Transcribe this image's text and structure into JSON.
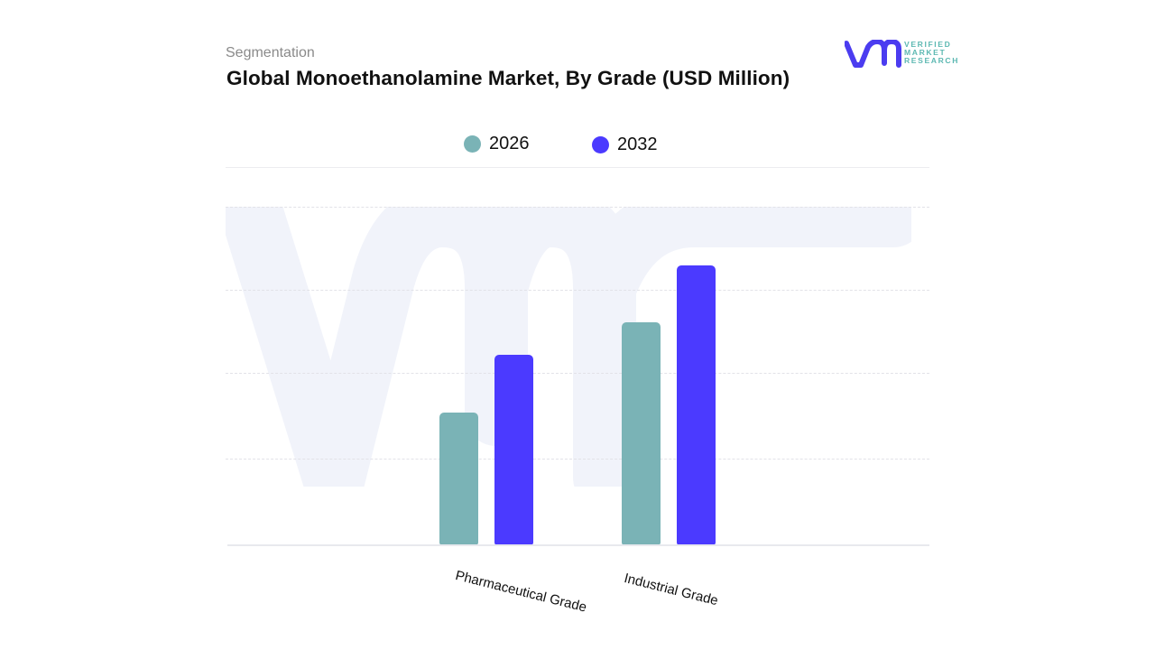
{
  "header": {
    "subtitle": "Segmentation",
    "title": "Global Monoethanolamine Market, By Grade (USD Million)"
  },
  "logo": {
    "mark": "vmr",
    "line1": "VERIFIED",
    "line2": "MARKET",
    "line3": "RESEARCH",
    "registered": "®",
    "mark_color": "#4b3cf0",
    "text_color": "#5cb8b2"
  },
  "legend": [
    {
      "label": "2026",
      "color": "#7ab3b6"
    },
    {
      "label": "2032",
      "color": "#4b3aff"
    }
  ],
  "chart_data": {
    "type": "bar",
    "title": "Global Monoethanolamine Market, By Grade (USD Million)",
    "subtitle": "Segmentation",
    "xlabel": "",
    "ylabel": "USD Million",
    "categories": [
      "Pharmaceutical Grade",
      "Industrial Grade"
    ],
    "series": [
      {
        "name": "2026",
        "color": "#7ab3b6",
        "values": [
          1.56,
          2.63
        ]
      },
      {
        "name": "2032",
        "color": "#4b3aff",
        "values": [
          2.25,
          3.3
        ]
      }
    ],
    "value_units": "relative (gridline units; no y-axis tick labels shown)",
    "ylim": [
      0,
      4
    ],
    "grid": true,
    "legend_position": "top-center",
    "x_tick_rotation_deg": 14
  }
}
